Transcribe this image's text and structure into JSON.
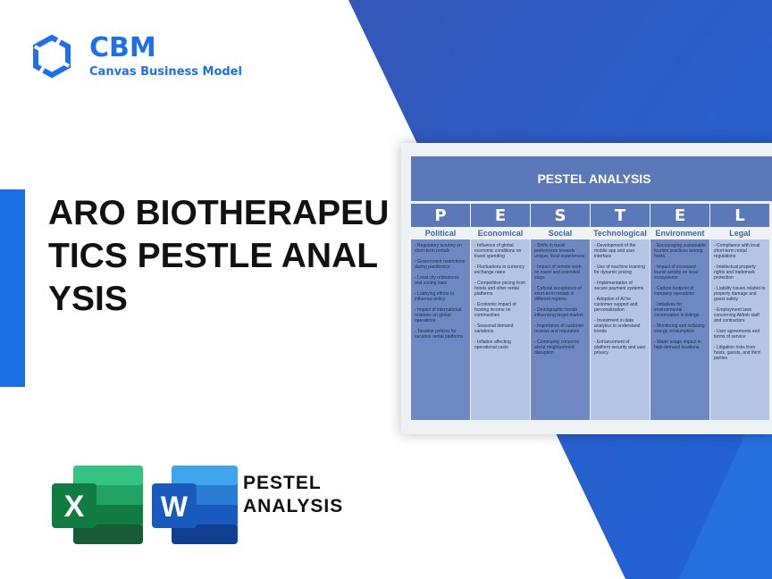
{
  "brand": {
    "name": "CBM",
    "subtitle": "Canvas Business Model",
    "color": "#1f6fe8"
  },
  "title": "ARO BIOTHERAPEUTICS PESTLE ANALYSIS",
  "card": {
    "header": "PESTEL ANALYSIS",
    "columns": [
      {
        "letter": "P",
        "label": "Political",
        "items": [
          "- Regulatory scrutiny on short-term rentals",
          "- Government restrictions during pandemics",
          "- Local city ordinances and zoning laws",
          "- Lobbying efforts to influence policy",
          "- Impact of international relations on global operations",
          "- Taxation policies for vacation rental platforms"
        ]
      },
      {
        "letter": "E",
        "label": "Economical",
        "items": [
          "- Influence of global economic conditions on travel spending",
          "- Fluctuations in currency exchange rates",
          "- Competitive pricing from hotels and other rental platforms",
          "- Economic impact of hosting income on communities",
          "- Seasonal demand variations",
          "- Inflation affecting operational costs"
        ]
      },
      {
        "letter": "S",
        "label": "Social",
        "items": [
          "- Shifts in travel preferences towards unique, local experiences",
          "- Impact of remote work on travel and extended stays",
          "- Cultural acceptance of short-term rentals in different regions",
          "- Demographic trends influencing target market",
          "- Importance of customer reviews and reputation",
          "- Community concerns about neighborhood disruption"
        ]
      },
      {
        "letter": "T",
        "label": "Technological",
        "items": [
          "- Development of the mobile app and user interface",
          "- Use of machine learning for dynamic pricing",
          "- Implementation of secure payment systems",
          "- Adoption of AI for customer support and personalization",
          "- Investment in data analytics to understand trends",
          "- Enhancement of platform security and user privacy"
        ]
      },
      {
        "letter": "E",
        "label": "Environment",
        "items": [
          "- Encouraging sustainable tourism practices among hosts",
          "- Impact of increased tourist activity on local ecosystems",
          "- Carbon footprint of company operations",
          "- Initiatives for environmental conservation in listings",
          "- Monitoring and reducing energy consumption",
          "- Water usage impact in high-demand locations"
        ]
      },
      {
        "letter": "L",
        "label": "Legal",
        "items": [
          "- Compliance with local short-term rental regulations",
          "- Intellectual property rights and trademark protection",
          "- Liability issues related to property damage and guest safety",
          "- Employment laws concerning Airbnb staff and contractors",
          "- User agreements and terms of service",
          "- Litigation risks from hosts, guests, and third parties"
        ]
      }
    ]
  },
  "apps": {
    "excel_letter": "X",
    "word_letter": "W",
    "label_line1": "PESTEL",
    "label_line2": "ANALYSIS"
  },
  "colors": {
    "blue_bg": "#2f5cc8",
    "header": "#5b79b8",
    "dark_col": "#6f88c2",
    "light_col": "#b4c4e3",
    "excel": "#107c41",
    "word": "#185abd"
  }
}
